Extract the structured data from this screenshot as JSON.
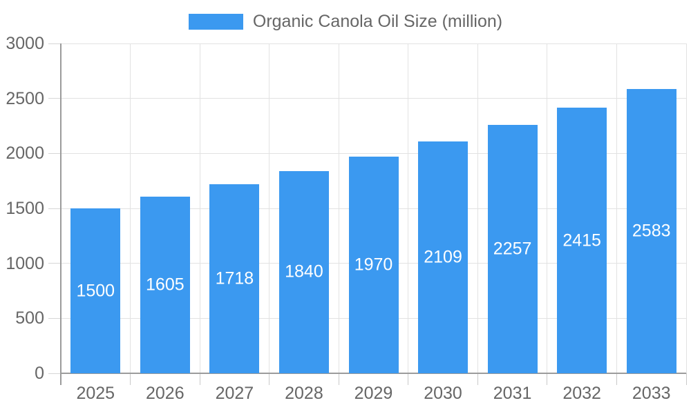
{
  "chart_data": {
    "type": "bar",
    "title": "Organic Canola Oil Size (million)",
    "categories": [
      "2025",
      "2026",
      "2027",
      "2028",
      "2029",
      "2030",
      "2031",
      "2032",
      "2033"
    ],
    "series": [
      {
        "name": "Organic Canola Oil Size (million)",
        "values": [
          1500,
          1605,
          1718,
          1840,
          1970,
          2109,
          2257,
          2415,
          2583
        ]
      }
    ],
    "xlabel": "",
    "ylabel": "",
    "ylim": [
      0,
      3000
    ],
    "yticks": [
      0,
      500,
      1000,
      1500,
      2000,
      2500,
      3000
    ],
    "grid": true,
    "legend_position": "top-center",
    "bar_color": "#3B99F0",
    "value_label_color": "#FFFFFF",
    "axis_text_color": "#666666"
  }
}
